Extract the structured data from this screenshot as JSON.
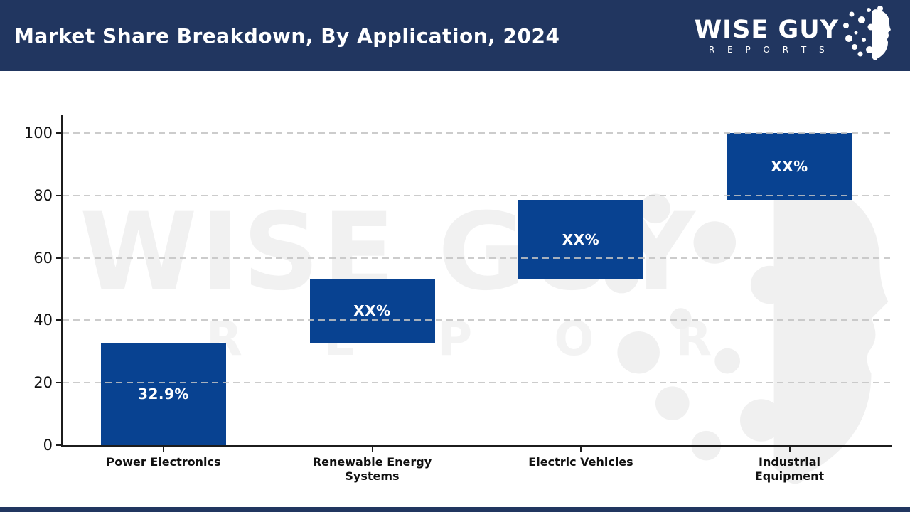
{
  "header": {
    "title": "Market Share Breakdown, By Application, 2024",
    "logo": {
      "line1": "WISE GUY",
      "line2": "R E P O R T S"
    }
  },
  "watermark": {
    "line1": "WISE GUY",
    "line2": "R E P O R T S"
  },
  "colors": {
    "header_bg": "#213660",
    "footer_bg": "#213660",
    "bar": "#084291",
    "grid": "#d6d6d6",
    "axis": "#1c1c1c"
  },
  "chart_data": {
    "type": "bar",
    "subtype": "floating-waterfall",
    "title": "Market Share Breakdown, By Application, 2024",
    "xlabel": "",
    "ylabel": "",
    "ylim": [
      0,
      100
    ],
    "yticks": [
      0,
      20,
      40,
      60,
      80,
      100
    ],
    "grid": {
      "horizontal": true,
      "style": "dashed",
      "drawn_over_bars": true
    },
    "legend": null,
    "bar_color": "#084291",
    "categories": [
      [
        "Power Electronics"
      ],
      [
        "Renewable Energy",
        "Systems"
      ],
      [
        "Electric Vehicles"
      ],
      [
        "Industrial",
        "Equipment"
      ]
    ],
    "bars": [
      {
        "category": "Power Electronics",
        "start": 0,
        "end": 32.9,
        "label": "32.9%"
      },
      {
        "category": "Renewable Energy Systems",
        "start": 32.9,
        "end": 53.2,
        "label": "XX%"
      },
      {
        "category": "Electric Vehicles",
        "start": 53.2,
        "end": 78.5,
        "label": "XX%"
      },
      {
        "category": "Industrial Equipment",
        "start": 78.5,
        "end": 100,
        "label": "XX%"
      }
    ]
  }
}
